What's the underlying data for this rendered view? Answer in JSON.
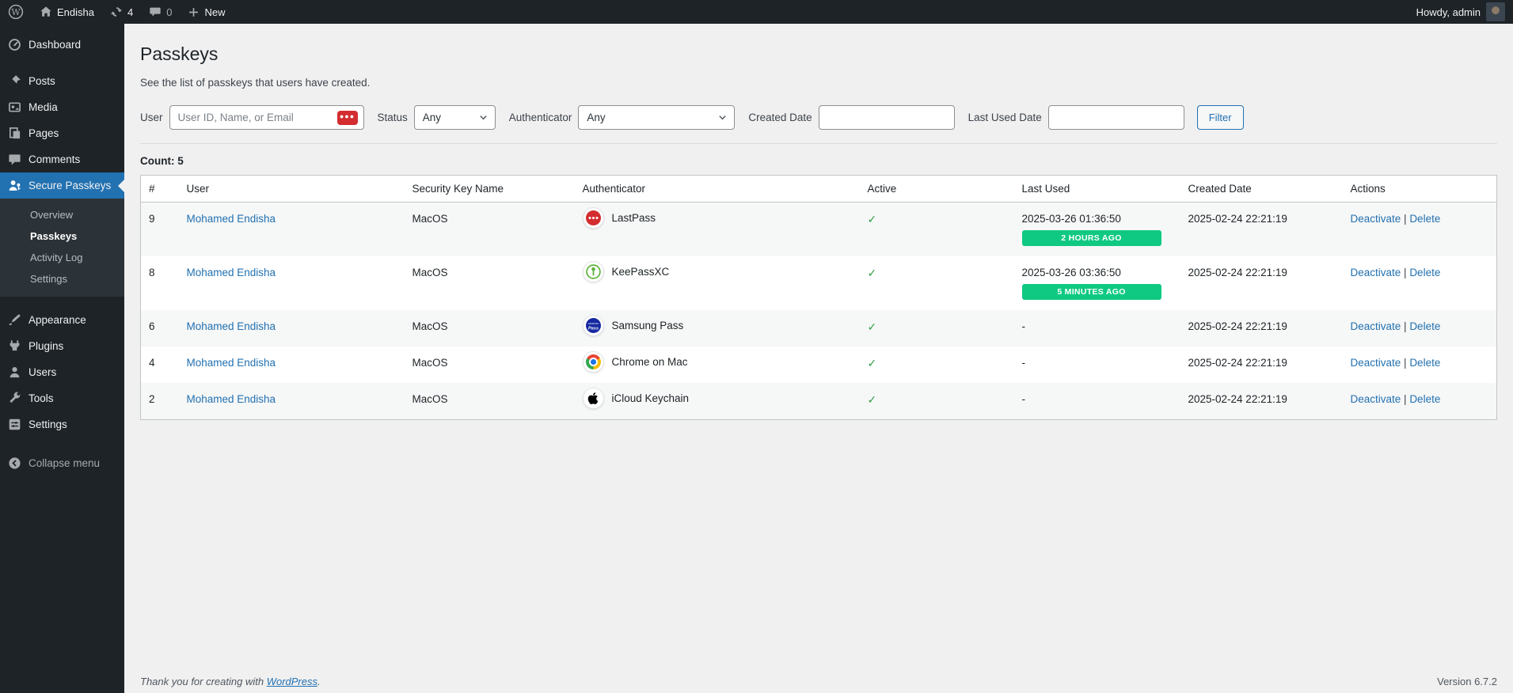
{
  "admin_bar": {
    "site_name": "Endisha",
    "updates_count": "4",
    "comments_count": "0",
    "new_label": "New",
    "howdy": "Howdy, admin"
  },
  "sidebar": {
    "items": [
      {
        "label": "Dashboard"
      },
      {
        "label": "Posts"
      },
      {
        "label": "Media"
      },
      {
        "label": "Pages"
      },
      {
        "label": "Comments"
      },
      {
        "label": "Secure Passkeys"
      },
      {
        "label": "Appearance"
      },
      {
        "label": "Plugins"
      },
      {
        "label": "Users"
      },
      {
        "label": "Tools"
      },
      {
        "label": "Settings"
      }
    ],
    "submenu": [
      {
        "label": "Overview"
      },
      {
        "label": "Passkeys"
      },
      {
        "label": "Activity Log"
      },
      {
        "label": "Settings"
      }
    ],
    "collapse_label": "Collapse menu"
  },
  "page": {
    "title": "Passkeys",
    "description": "See the list of passkeys that users have created.",
    "count_label": "Count: 5"
  },
  "filters": {
    "user_label": "User",
    "user_placeholder": "User ID, Name, or Email",
    "user_value": "",
    "status_label": "Status",
    "status_value": "Any",
    "authenticator_label": "Authenticator",
    "authenticator_value": "Any",
    "created_date_label": "Created Date",
    "created_date_value": "",
    "last_used_date_label": "Last Used Date",
    "last_used_date_value": "",
    "filter_button": "Filter"
  },
  "table": {
    "headers": [
      "#",
      "User",
      "Security Key Name",
      "Authenticator",
      "Active",
      "Last Used",
      "Created Date",
      "Actions"
    ],
    "rows": [
      {
        "num": "9",
        "user": "Mohamed Endisha",
        "key_name": "MacOS",
        "auth": "LastPass",
        "auth_icon": "lastpass-icon",
        "active": "✓",
        "last_used": "2025-03-26 01:36:50",
        "last_used_badge": "2 HOURS AGO",
        "created": "2025-02-24 22:21:19",
        "action1": "Deactivate",
        "action2": "Delete"
      },
      {
        "num": "8",
        "user": "Mohamed Endisha",
        "key_name": "MacOS",
        "auth": "KeePassXC",
        "auth_icon": "keepassxc-icon",
        "active": "✓",
        "last_used": "2025-03-26 03:36:50",
        "last_used_badge": "5 MINUTES AGO",
        "created": "2025-02-24 22:21:19",
        "action1": "Deactivate",
        "action2": "Delete"
      },
      {
        "num": "6",
        "user": "Mohamed Endisha",
        "key_name": "MacOS",
        "auth": "Samsung Pass",
        "auth_icon": "samsungpass-icon",
        "active": "✓",
        "last_used": "-",
        "last_used_badge": "",
        "created": "2025-02-24 22:21:19",
        "action1": "Deactivate",
        "action2": "Delete"
      },
      {
        "num": "4",
        "user": "Mohamed Endisha",
        "key_name": "MacOS",
        "auth": "Chrome on Mac",
        "auth_icon": "chrome-icon",
        "active": "✓",
        "last_used": "-",
        "last_used_badge": "",
        "created": "2025-02-24 22:21:19",
        "action1": "Deactivate",
        "action2": "Delete"
      },
      {
        "num": "2",
        "user": "Mohamed Endisha",
        "key_name": "MacOS",
        "auth": "iCloud Keychain",
        "auth_icon": "apple-icon",
        "active": "✓",
        "last_used": "-",
        "last_used_badge": "",
        "created": "2025-02-24 22:21:19",
        "action1": "Deactivate",
        "action2": "Delete"
      }
    ]
  },
  "footer": {
    "thanks_prefix": "Thank you for creating with ",
    "wordpress_link": "WordPress",
    "thanks_suffix": ".",
    "version": "Version 6.7.2"
  },
  "colors": {
    "accent_blue": "#2271b1",
    "badge_green": "#0fc982",
    "check_green": "#2f9e44",
    "lastpass_red": "#d32d2f",
    "samsung_navy": "#1428a0",
    "keepass_green": "#5cb339",
    "admin_dark": "#1d2327",
    "content_bg": "#f0f0f1"
  }
}
